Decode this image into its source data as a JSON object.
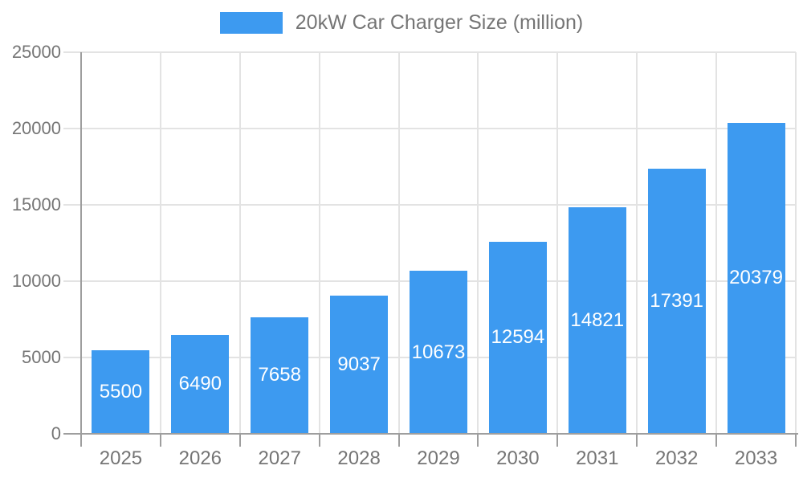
{
  "chart_data": {
    "type": "bar",
    "title": "20kW Car Charger Size (million)",
    "categories": [
      "2025",
      "2026",
      "2027",
      "2028",
      "2029",
      "2030",
      "2031",
      "2032",
      "2033"
    ],
    "values": [
      5500,
      6490,
      7658,
      9037,
      10673,
      12594,
      14821,
      17391,
      20379
    ],
    "xlabel": "",
    "ylabel": "",
    "ylim": [
      0,
      25000
    ],
    "yticks": [
      0,
      5000,
      10000,
      15000,
      20000,
      25000
    ],
    "grid": true,
    "legend_position": "top",
    "value_labels": "inside-center",
    "colors": {
      "bar": "#3D9AF0",
      "value_label": "#FFFFFF",
      "axis_text": "#757575",
      "gridline": "#E3E3E3",
      "axis_line": "#9E9E9E",
      "background": "#FFFFFF"
    }
  }
}
